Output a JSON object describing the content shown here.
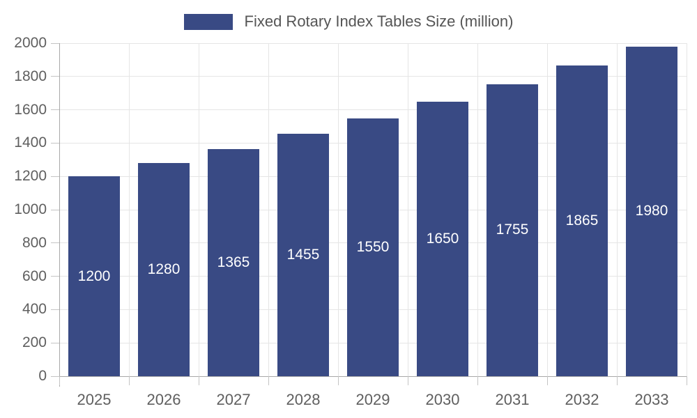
{
  "legend": {
    "label": "Fixed Rotary Index Tables Size (million)"
  },
  "chart_data": {
    "type": "bar",
    "title": "Fixed Rotary Index Tables Size (million)",
    "categories": [
      "2025",
      "2026",
      "2027",
      "2028",
      "2029",
      "2030",
      "2031",
      "2032",
      "2033"
    ],
    "values": [
      1200,
      1280,
      1365,
      1455,
      1550,
      1650,
      1755,
      1865,
      1980
    ],
    "xlabel": "",
    "ylabel": "",
    "ylim": [
      0,
      2000
    ],
    "yticks": [
      0,
      200,
      400,
      600,
      800,
      1000,
      1200,
      1400,
      1600,
      1800,
      2000
    ],
    "grid": "both",
    "legend_position": "top-center",
    "bar_value_labels": "inside-center"
  },
  "colors": {
    "bar": "#394A84",
    "bar_label": "#FFFFFF",
    "gridline": "#E5E5E5",
    "axis_line": "#A8A8A8",
    "tick_mark": "#C4C4C4",
    "tick_label": "#5F5F5F",
    "legend_text": "#555555",
    "background": "#FFFFFF"
  }
}
